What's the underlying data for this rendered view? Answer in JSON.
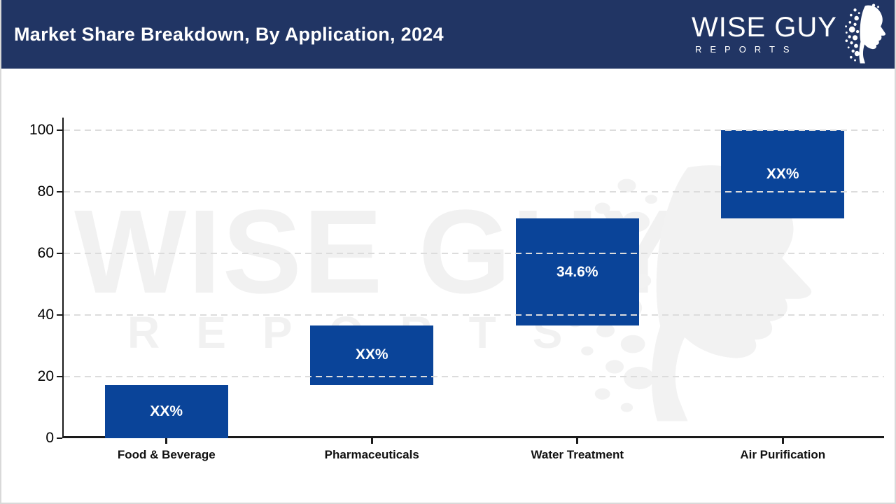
{
  "header": {
    "title": "Market Share Breakdown, By Application, 2024",
    "logo": {
      "name": "WISE GUY",
      "subname": "REPORTS"
    }
  },
  "watermark": {
    "name": "WISE GUY",
    "subname": "REPORTS"
  },
  "chart_data": {
    "type": "bar",
    "subtype": "waterfall-floating-bars",
    "title": "Market Share Breakdown, By Application, 2024",
    "categories": [
      "Food & Beverage",
      "Pharmaceuticals",
      "Water Treatment",
      "Air Purification"
    ],
    "bars": [
      {
        "category": "Food & Beverage",
        "start": 0,
        "end": 17.3,
        "label": "XX%"
      },
      {
        "category": "Pharmaceuticals",
        "start": 17.3,
        "end": 36.6,
        "label": "XX%"
      },
      {
        "category": "Water Treatment",
        "start": 36.6,
        "end": 71.2,
        "label": "34.6%"
      },
      {
        "category": "Air Purification",
        "start": 71.4,
        "end": 100,
        "label": "XX%"
      }
    ],
    "xlabel": "",
    "ylabel": "",
    "ylim": [
      0,
      104
    ],
    "yticks": [
      0,
      20,
      40,
      60,
      80,
      100
    ],
    "grid": "horizontal-dashed",
    "legend": "none",
    "bar_color": "#0a4499",
    "bar_label_color": "#ffffff",
    "grid_color": "#dcdcdc",
    "axis_color": "#1a1a1a",
    "header_bg": "#213564",
    "watermark_color": "#f1f1f1"
  }
}
